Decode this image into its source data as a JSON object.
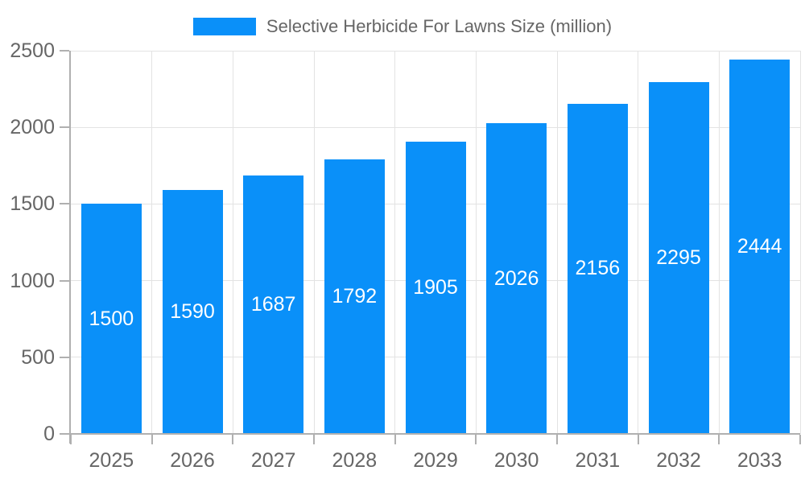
{
  "legend": {
    "label": "Selective Herbicide For Lawns Size (million)"
  },
  "colors": {
    "bar": "#0a90f9",
    "grid": "#e3e3e3",
    "axis": "#b0b0b0",
    "tick_text": "#666666",
    "bar_label_text": "#ffffff",
    "background": "#ffffff"
  },
  "chart_data": {
    "type": "bar",
    "categories": [
      "2025",
      "2026",
      "2027",
      "2028",
      "2029",
      "2030",
      "2031",
      "2032",
      "2033"
    ],
    "values": [
      1500,
      1590,
      1687,
      1792,
      1905,
      2026,
      2156,
      2295,
      2444
    ],
    "title": "Selective Herbicide For Lawns Size (million)",
    "xlabel": "",
    "ylabel": "",
    "ylim": [
      0,
      2500
    ],
    "yticks": [
      0,
      500,
      1000,
      1500,
      2000,
      2500
    ],
    "grid": true,
    "legend_position": "top",
    "value_labels": "inside-center-white"
  }
}
